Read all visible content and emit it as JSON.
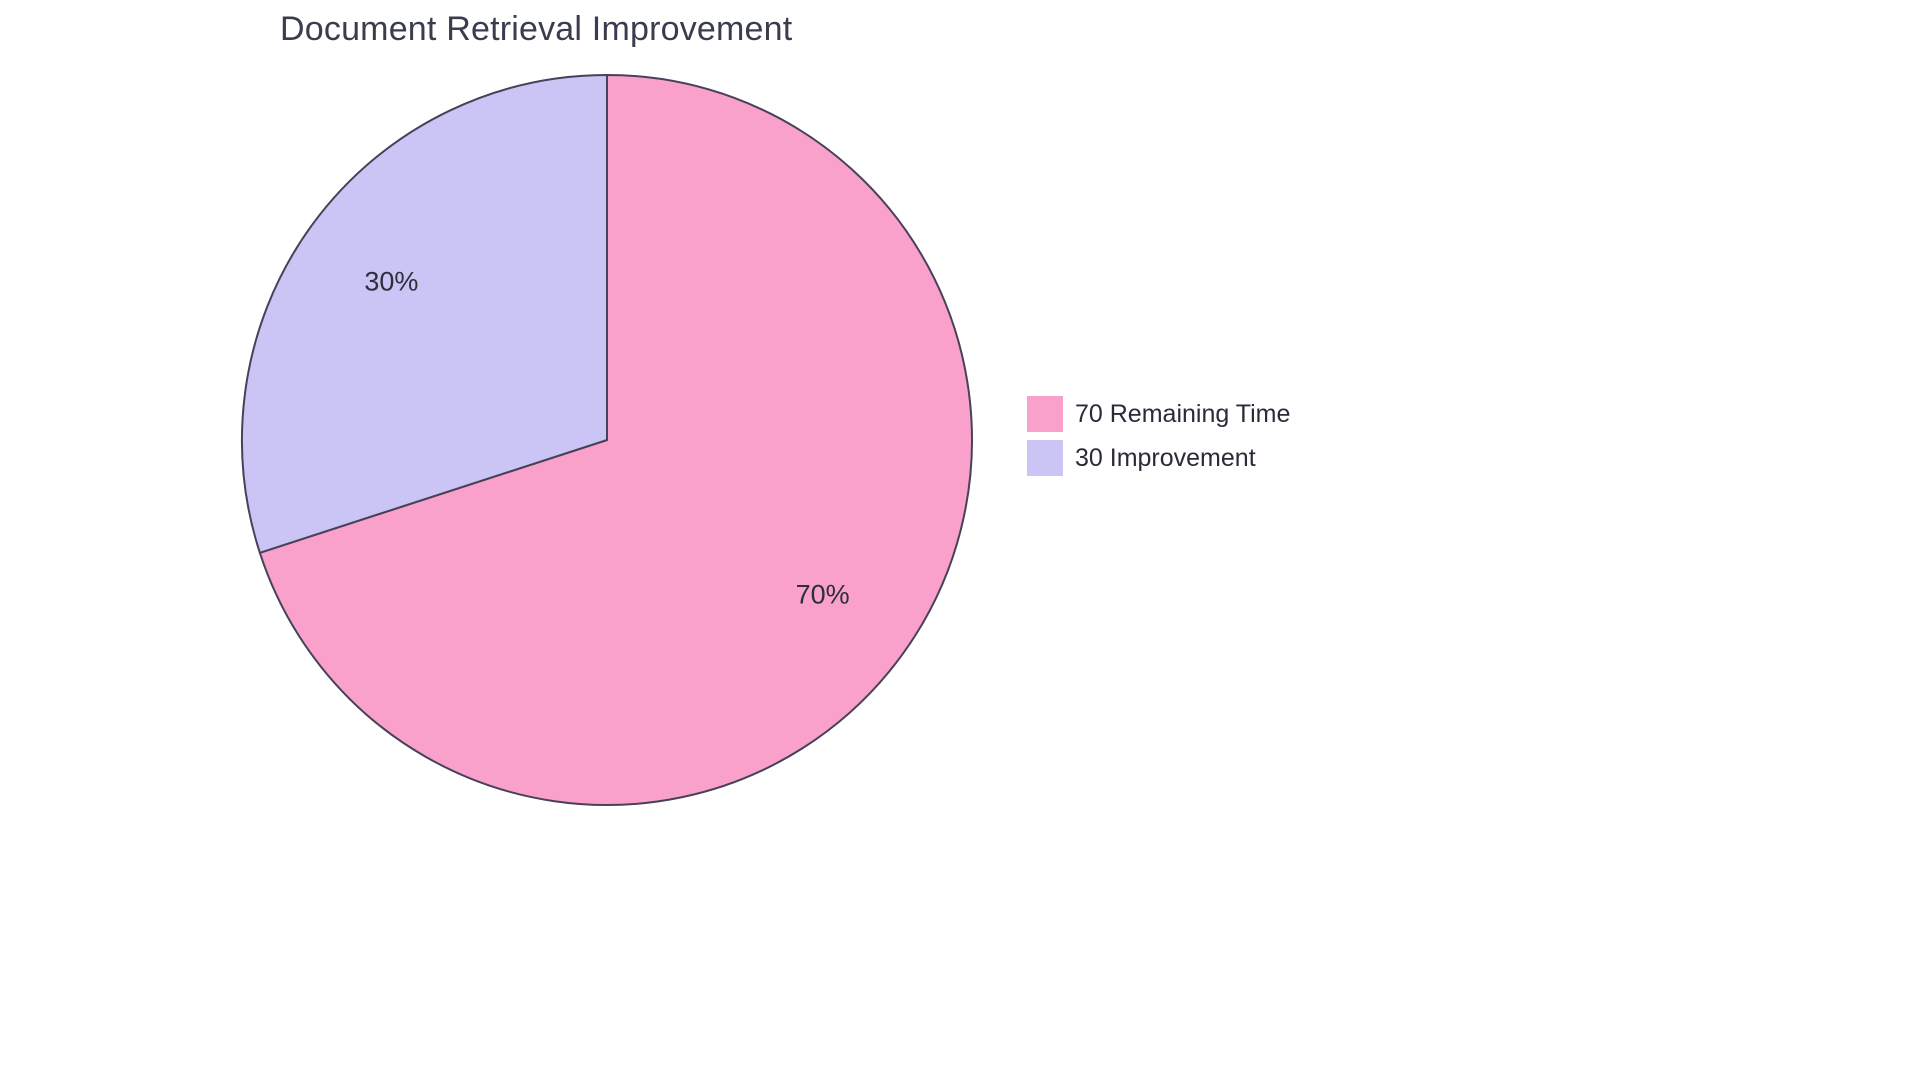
{
  "chart_data": {
    "type": "pie",
    "title": "Document Retrieval Improvement",
    "slices": [
      {
        "name": "Remaining Time",
        "legend_label": "70 Remaining Time",
        "value": 70,
        "display_pct": "70%",
        "color": "#F9A1CB"
      },
      {
        "name": "Improvement",
        "legend_label": "30 Improvement",
        "value": 30,
        "display_pct": "30%",
        "color": "#CAC5F5"
      }
    ],
    "start_angle_deg": 0,
    "direction": "clockwise",
    "legend_position": "right",
    "stroke": {
      "color": "#474159",
      "width": 2
    },
    "label_color": "#2e2e3d",
    "label_radius_fraction": 0.73
  }
}
